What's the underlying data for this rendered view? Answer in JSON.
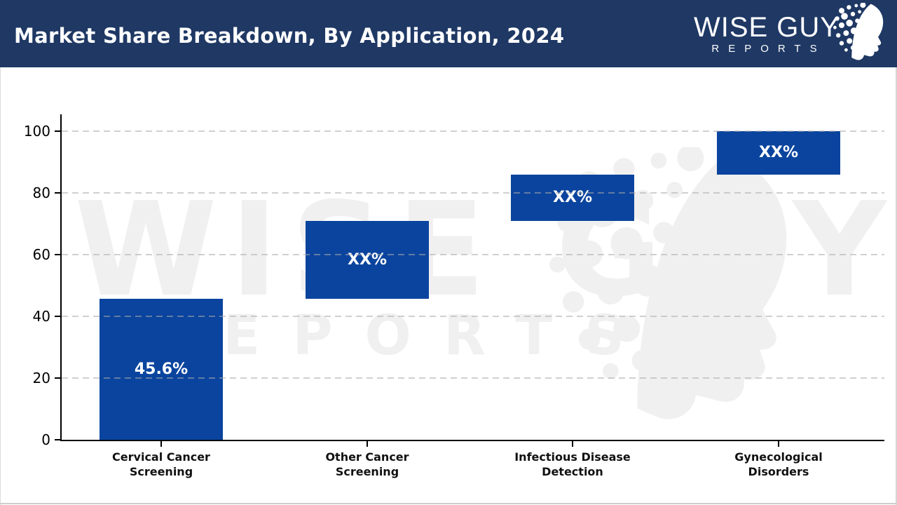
{
  "page": {
    "header_bg": "#1f3864",
    "title": "Market Share Breakdown, By Application, 2024",
    "logo": {
      "name": "WISE GUY",
      "subname": "REPORTS"
    },
    "watermark": {
      "line1": "WISE GUY",
      "line2": "REPORTS"
    },
    "frame_border_color": "#cdcdcd"
  },
  "chart_data": {
    "type": "bar",
    "subtype": "waterfall",
    "title": "Market Share Breakdown, By Application, 2024",
    "categories": [
      "Cervical Cancer\nScreening",
      "Other Cancer\nScreening",
      "Infectious Disease\nDetection",
      "Gynecological\nDisorders"
    ],
    "segments": [
      {
        "category": "Cervical Cancer Screening",
        "start": 0,
        "end": 45.6,
        "label": "45.6%"
      },
      {
        "category": "Other Cancer Screening",
        "start": 45.6,
        "end": 71,
        "label": "XX%"
      },
      {
        "category": "Infectious Disease Detection",
        "start": 71,
        "end": 86,
        "label": "XX%"
      },
      {
        "category": "Gynecological Disorders",
        "start": 86,
        "end": 100,
        "label": "XX%"
      }
    ],
    "yticks": [
      0,
      20,
      40,
      60,
      80,
      100
    ],
    "ylim": [
      0,
      105
    ],
    "xlabel": "",
    "ylabel": "",
    "grid": "horizontal-dashed",
    "legend": "none",
    "bar_color": "#0a449e",
    "bar_label_color": "#ffffff",
    "axis_color": "#000000",
    "gridline_color": "#d9d9d9"
  }
}
